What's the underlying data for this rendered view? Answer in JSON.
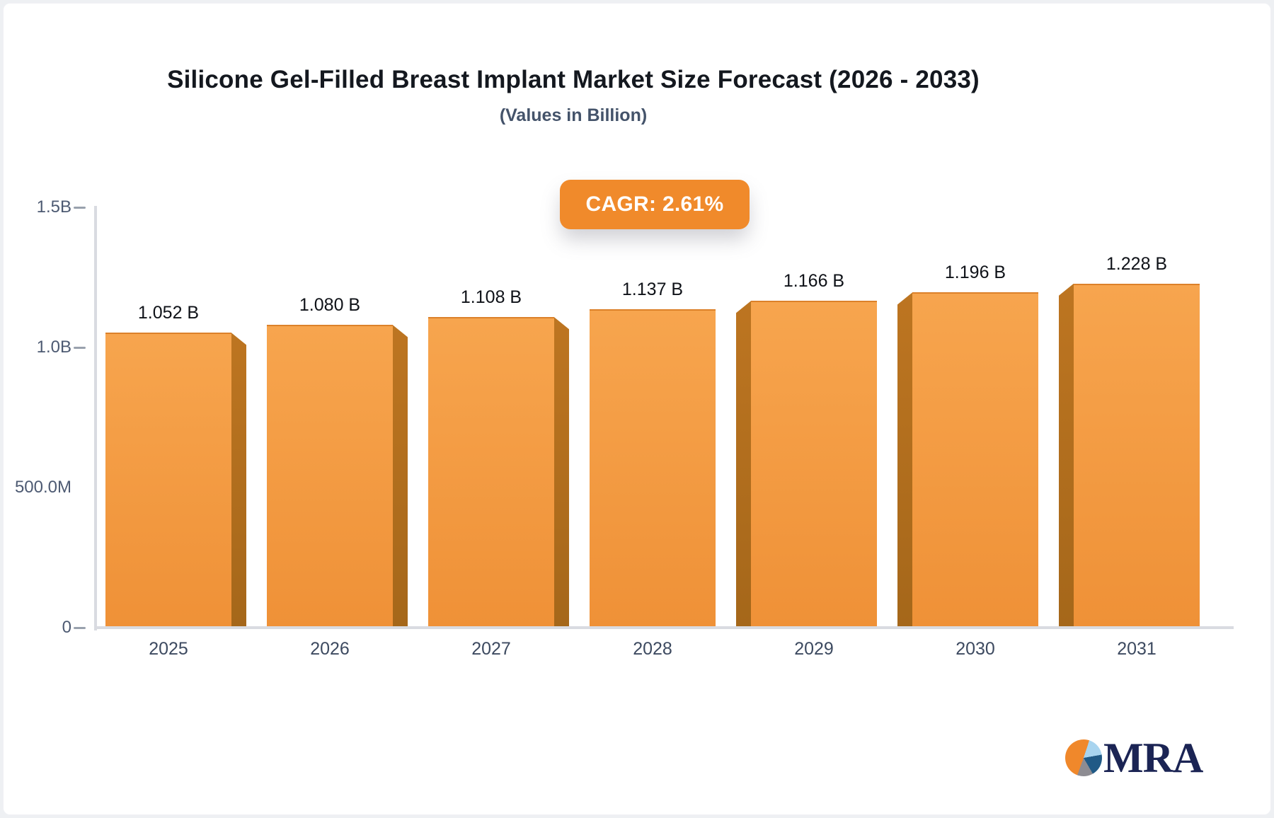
{
  "header": {
    "title": "Silicone Gel-Filled Breast Implant Market Size Forecast (2026 - 2033)",
    "subtitle": "(Values in Billion)"
  },
  "badge": {
    "label": "CAGR: 2.61%"
  },
  "chart_data": {
    "type": "bar",
    "categories": [
      "2025",
      "2026",
      "2027",
      "2028",
      "2029",
      "2030",
      "2031"
    ],
    "values": [
      1.052,
      1.08,
      1.108,
      1.137,
      1.166,
      1.196,
      1.228
    ],
    "value_labels": [
      "1.052 B",
      "1.080 B",
      "1.108 B",
      "1.137 B",
      "1.166 B",
      "1.196 B",
      "1.228 B"
    ],
    "title": "Silicone Gel-Filled Breast Implant Market Size Forecast (2026 - 2033)",
    "subtitle": "(Values in Billion)",
    "annotation": "CAGR: 2.61%",
    "xlabel": "",
    "ylabel": "",
    "ylim": [
      0,
      1.5
    ],
    "grid": false,
    "legend": "none",
    "yticks": [
      {
        "label": "1.5B",
        "value": 1.5,
        "dash": true
      },
      {
        "label": "1.0B",
        "value": 1.0,
        "dash": true
      },
      {
        "label": "500.0M",
        "value": 0.5,
        "dash": false
      },
      {
        "label": "0",
        "value": 0.0,
        "dash": true
      }
    ]
  },
  "colors": {
    "badge_bg": "#f08a2b",
    "bar_front_top": "#f7a54e",
    "bar_front_bottom": "#ef9137",
    "bar_side_top": "#bd7521",
    "bar_side_bottom": "#a5671a",
    "axis": "#d9dbe1",
    "tick_dash": "#99a1ad",
    "tick_label": "#4d5a72",
    "year_label": "#3d4a60",
    "value_label": "#0f1218",
    "logo_navy": "#1b2454",
    "logo_orange": "#f0882b",
    "logo_lightblue": "#a8d4ef",
    "logo_blue": "#205a86",
    "logo_gray": "#8d8c92"
  },
  "logo": {
    "text": "MRA"
  }
}
